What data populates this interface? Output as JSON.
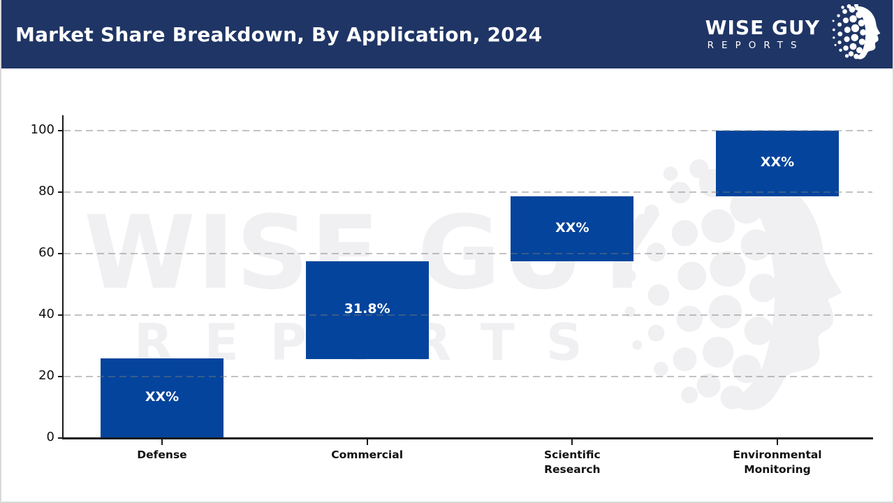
{
  "header": {
    "title": "Market Share Breakdown, By Application, 2024",
    "logo": {
      "line1": "WISE GUY",
      "line2": "REPORTS"
    }
  },
  "watermark": {
    "line1": "WISE GUY",
    "line2": "REPORTS"
  },
  "colors": {
    "header_bg": "#1f3565",
    "bar": "#04449c",
    "axis": "#1a1a1a",
    "gridline_on_white": "#c2c2c2",
    "value_label": "#ffffff",
    "watermark": "#f0f0f2"
  },
  "chart_data": {
    "type": "bar",
    "variant": "waterfall",
    "title": "Market Share Breakdown, By Application, 2024",
    "xlabel": "",
    "ylabel": "",
    "ylim": [
      0,
      105
    ],
    "yticks": [
      0,
      20,
      40,
      60,
      80,
      100
    ],
    "grid": "dashed horizontal",
    "legend": "none",
    "categories": [
      "Defense",
      "Commercial",
      "Scientific Research",
      "Environmental Monitoring"
    ],
    "category_lines": [
      [
        "Defense"
      ],
      [
        "Commercial"
      ],
      [
        "Scientific",
        "Research"
      ],
      [
        "Environmental",
        "Monitoring"
      ]
    ],
    "bars": [
      {
        "category": "Defense",
        "label": "XX%",
        "start": 0,
        "end": 25.8
      },
      {
        "category": "Commercial",
        "label": "31.8%",
        "start": 25.7,
        "end": 57.5
      },
      {
        "category": "Scientific Research",
        "label": "XX%",
        "start": 57.5,
        "end": 78.6
      },
      {
        "category": "Environmental Monitoring",
        "label": "XX%",
        "start": 78.6,
        "end": 100
      }
    ]
  }
}
